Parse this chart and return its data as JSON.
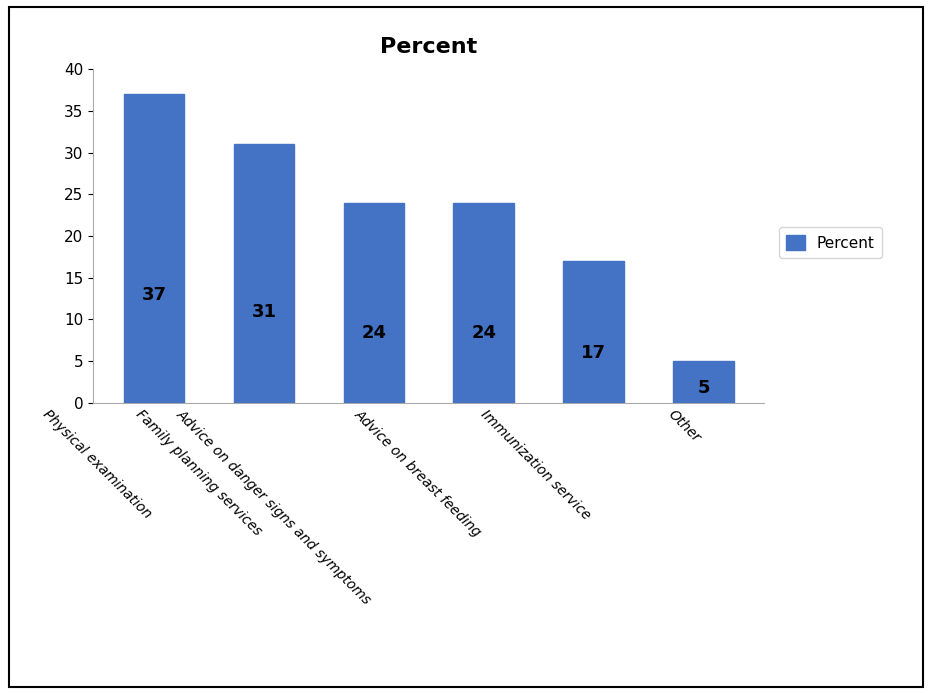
{
  "title": "Percent",
  "categories": [
    "Physical examination",
    "Family planning services",
    "Advice on danger signs and symptoms",
    "Advice on breast feeding",
    "Immunization service",
    "Other"
  ],
  "values": [
    37,
    31,
    24,
    24,
    17,
    5
  ],
  "bar_color": "#4472C4",
  "label_color": "#000000",
  "ylim": [
    0,
    40
  ],
  "yticks": [
    0,
    5,
    10,
    15,
    20,
    25,
    30,
    35,
    40
  ],
  "title_fontsize": 16,
  "title_fontweight": "bold",
  "bar_label_fontsize": 13,
  "bar_label_fontweight": "bold",
  "legend_label": "Percent",
  "background_color": "#ffffff",
  "bar_width": 0.55,
  "xlabel_rotation": -45,
  "xlabel_ha": "right",
  "xtick_fontsize": 10,
  "ytick_fontsize": 11,
  "legend_fontsize": 11
}
